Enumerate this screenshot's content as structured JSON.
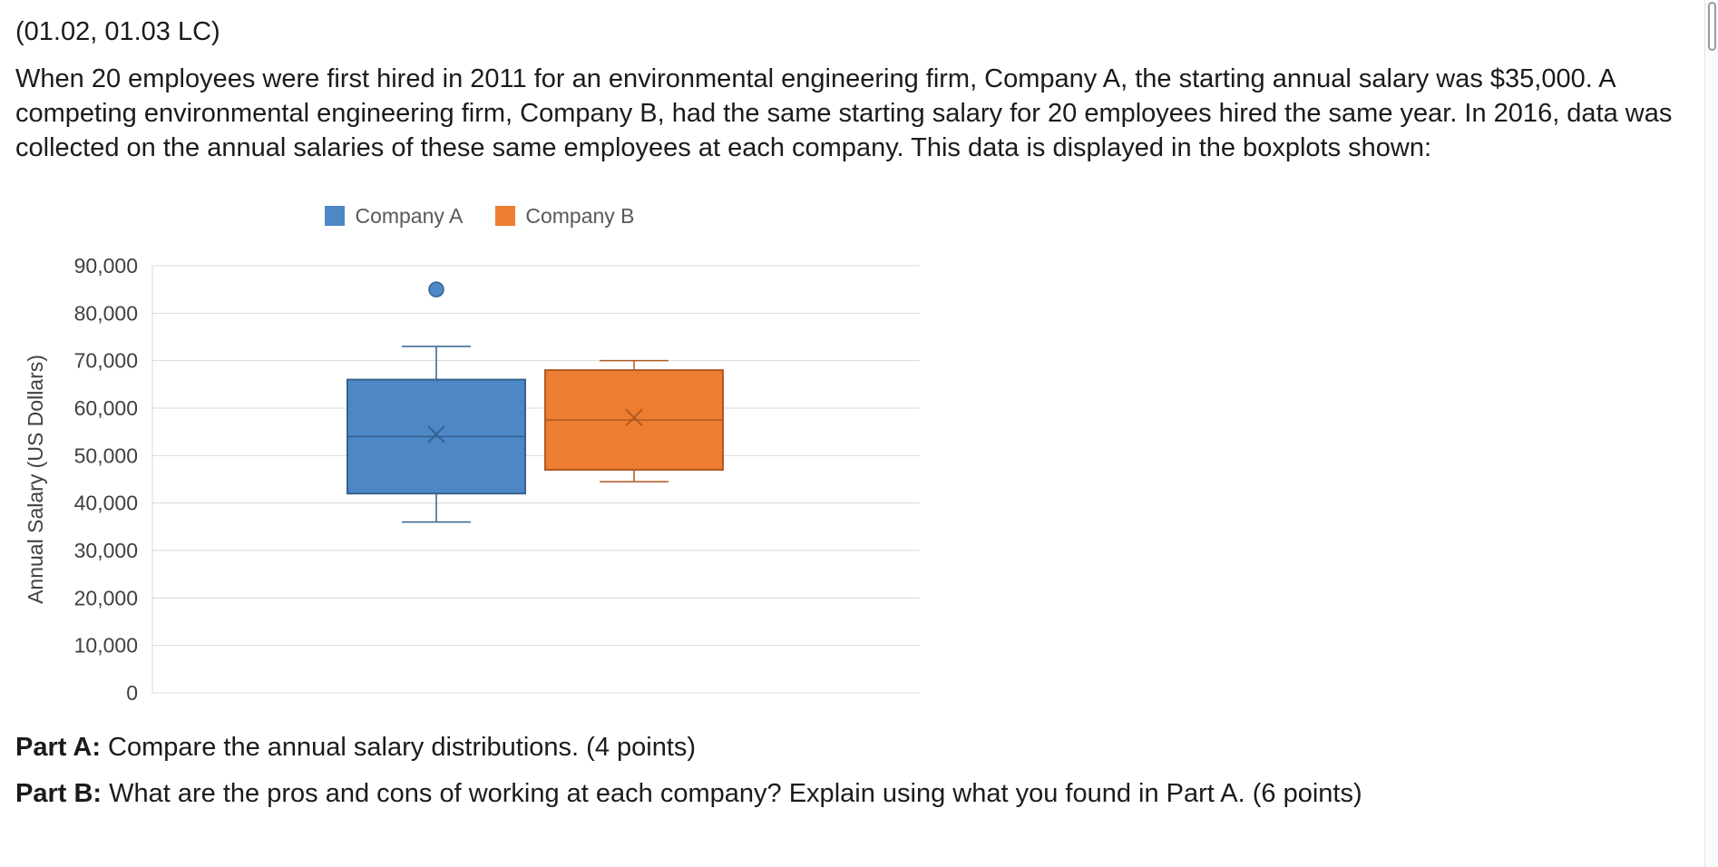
{
  "header": {
    "code": "(01.02, 01.03 LC)"
  },
  "question": {
    "text": "When 20 employees were first hired in 2011 for an environmental engineering firm, Company A, the starting annual salary was $35,000. A competing environmental engineering firm, Company B, had the same starting salary for 20 employees hired the same year. In 2016, data was collected on the annual salaries of these same employees at each company. This data is displayed in the boxplots shown:"
  },
  "chart_data": {
    "type": "boxplot",
    "title": "",
    "xlabel": "",
    "ylabel": "Annual Salary (US Dollars)",
    "ylim": [
      0,
      90000
    ],
    "ytick_interval": 10000,
    "ytick_labels": [
      "0",
      "10,000",
      "20,000",
      "30,000",
      "40,000",
      "50,000",
      "60,000",
      "70,000",
      "80,000",
      "90,000"
    ],
    "grid": true,
    "legend_position": "top",
    "gridline_color": "#d9d9d9",
    "axis_text_color": "#404040",
    "legend_text_color": "#595959",
    "series": [
      {
        "name": "Company A",
        "color": "#4e87c5",
        "border": "#35618f",
        "min": 36000,
        "q1": 42000,
        "median": 54000,
        "q3": 66000,
        "max": 73000,
        "mean": 54500,
        "outliers": [
          85000
        ]
      },
      {
        "name": "Company B",
        "color": "#ed7d31",
        "border": "#ae5a21",
        "min": 44500,
        "q1": 47000,
        "median": 57500,
        "q3": 68000,
        "max": 70000,
        "mean": 58000,
        "outliers": []
      }
    ]
  },
  "parts": {
    "a_label": "Part A:",
    "a_text": " Compare the annual salary distributions. (4 points)",
    "b_label": "Part B:",
    "b_text": " What are the pros and cons of working at each company? Explain using what you found in Part A. (6 points)"
  }
}
